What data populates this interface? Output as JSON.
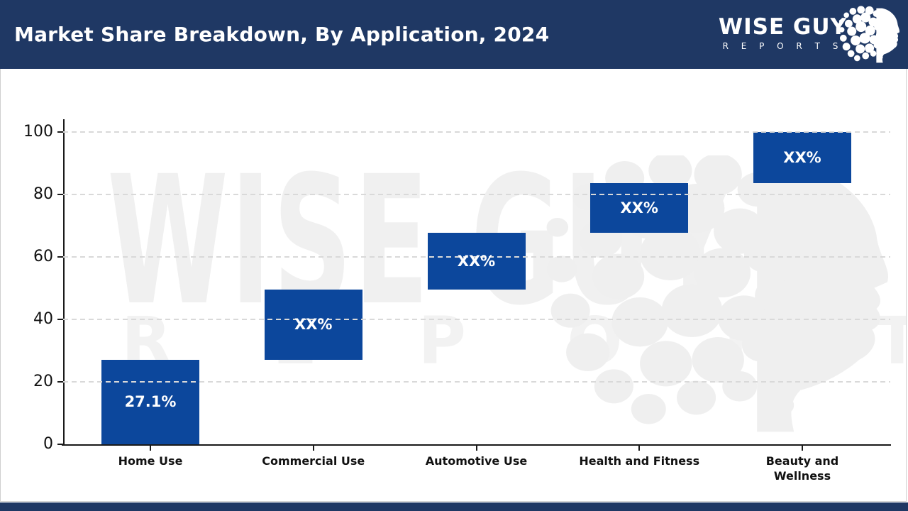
{
  "header": {
    "title": "Market Share Breakdown, By Application, 2024",
    "brand_line1": "WISE GUY",
    "brand_line2": "R E P O R T S"
  },
  "watermark": {
    "line1": "WISE GUY",
    "line2": "R E P O R T S"
  },
  "icons": {
    "brand_head": "head-profile-dots-icon",
    "watermark_head": "head-profile-dots-icon"
  },
  "chart_data": {
    "type": "bar",
    "subtype": "waterfall",
    "title": "Market Share Breakdown, By Application, 2024",
    "xlabel": "",
    "ylabel": "",
    "categories": [
      "Home Use",
      "Commercial Use",
      "Automotive Use",
      "Health and Fitness",
      "Beauty and Wellness"
    ],
    "segments": [
      {
        "category": "Home Use",
        "start": 0,
        "end": 27.1,
        "label": "27.1%"
      },
      {
        "category": "Commercial Use",
        "start": 27.1,
        "end": 49.6,
        "label": "XX%"
      },
      {
        "category": "Automotive Use",
        "start": 49.6,
        "end": 67.7,
        "label": "XX%"
      },
      {
        "category": "Health and Fitness",
        "start": 67.7,
        "end": 83.5,
        "label": "XX%"
      },
      {
        "category": "Beauty and Wellness",
        "start": 83.5,
        "end": 100,
        "label": "XX%"
      }
    ],
    "yticks": [
      0,
      20,
      40,
      60,
      80,
      100
    ],
    "ylim": [
      0,
      104
    ],
    "grid": "dashed-horizontal",
    "legend": "none",
    "bar_color": "#0c479c",
    "bar_label_color": "#ffffff"
  },
  "colors": {
    "header_bg": "#1f3864",
    "footer_bg": "#1f3864",
    "bar": "#0c479c",
    "axis": "#1a1a1a",
    "grid": "#d9d9d9",
    "watermark": "#f0f0f0",
    "card_border": "#cfcfcf"
  }
}
